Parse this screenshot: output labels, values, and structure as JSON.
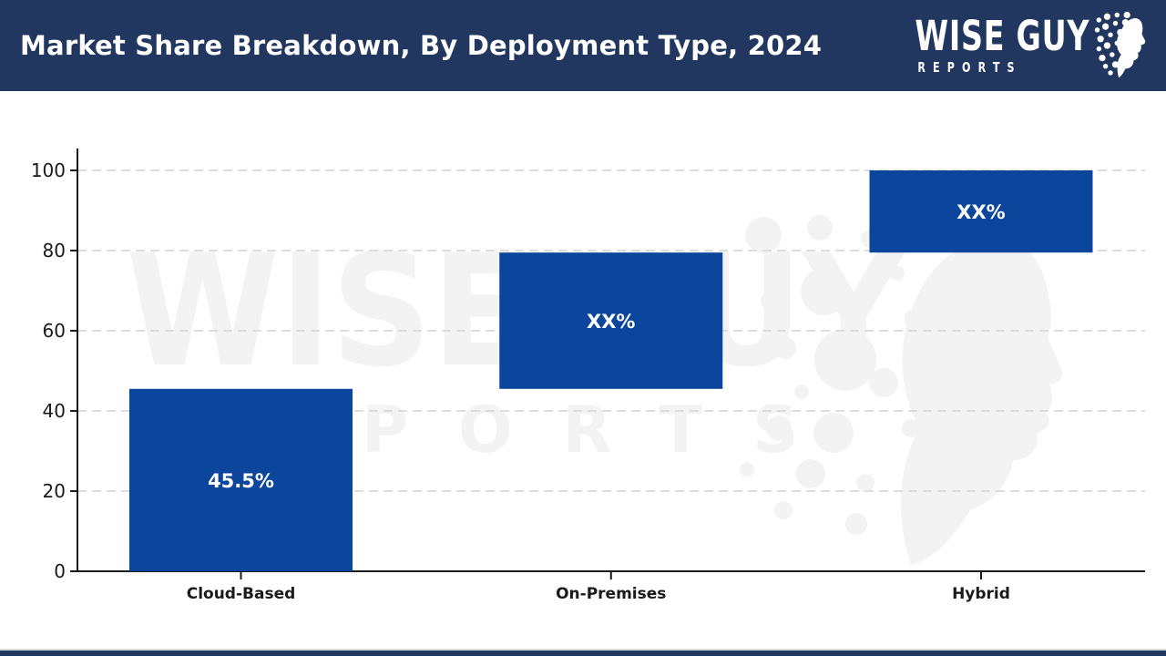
{
  "header": {
    "title": "Market Share Breakdown, By Deployment Type, 2024",
    "logo": {
      "name": "WISE GUY",
      "tagline": "REPORTS"
    }
  },
  "watermark": {
    "line1": "WISE GUY",
    "line2": "REPORTS"
  },
  "chart_data": {
    "type": "bar",
    "subtype": "waterfall",
    "title": "Market Share Breakdown, By Deployment Type, 2024",
    "categories": [
      "Cloud-Based",
      "On-Premises",
      "Hybrid"
    ],
    "series": [
      {
        "name": "Market share (%)",
        "segments": [
          {
            "category": "Cloud-Based",
            "start": 0,
            "end": 45.5,
            "label": "45.5%"
          },
          {
            "category": "On-Premises",
            "start": 45.5,
            "end": 79.5,
            "label": "XX%"
          },
          {
            "category": "Hybrid",
            "start": 79.5,
            "end": 100,
            "label": "XX%"
          }
        ]
      }
    ],
    "xlabel": "",
    "ylabel": "",
    "ylim": [
      0,
      100
    ],
    "yticks": [
      0,
      20,
      40,
      60,
      80,
      100
    ],
    "grid": "horizontal-dashed",
    "legend": "none",
    "bar_color": "#0b459c",
    "bar_label_color": "#ffffff"
  },
  "colors": {
    "header_bg": "#21375f",
    "footer_bg": "#21375f",
    "page_bg": "#ffffff",
    "axis": "#1a1a1a",
    "gridline": "#d9d9d9",
    "tick_label": "#1a1a1a",
    "watermark": "#f3f3f3"
  }
}
